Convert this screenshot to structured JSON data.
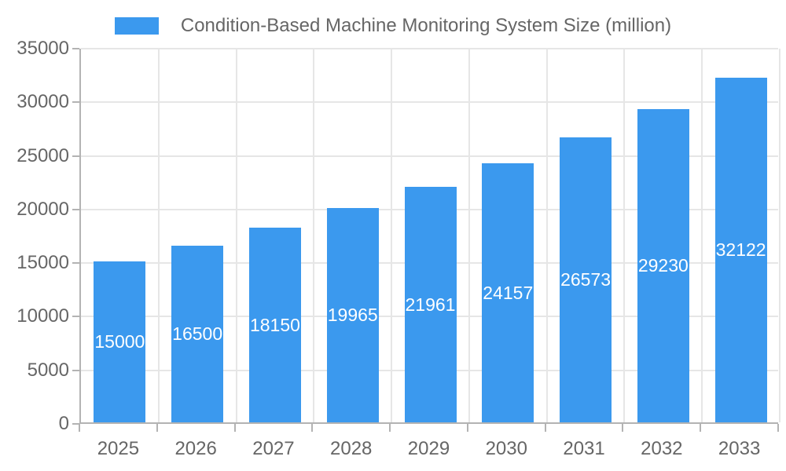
{
  "chart_data": {
    "type": "bar",
    "title": "Condition-Based Machine Monitoring System Size (million)",
    "categories": [
      "2025",
      "2026",
      "2027",
      "2028",
      "2029",
      "2030",
      "2031",
      "2032",
      "2033"
    ],
    "values": [
      15000,
      16500,
      18150,
      19965,
      21961,
      24157,
      26573,
      29230,
      32122
    ],
    "series_name": "Condition-Based Machine Monitoring System Size (million)",
    "xlabel": "",
    "ylabel": "",
    "ylim": [
      0,
      35000
    ],
    "ytick_step": 5000,
    "ytick_labels": [
      "0",
      "5000",
      "10000",
      "15000",
      "20000",
      "25000",
      "30000",
      "35000"
    ],
    "grid": true,
    "legend_position": "top",
    "value_labels_position": "center-inside",
    "colors": {
      "bar": "#3B99EE",
      "gridline": "#E6E6E6",
      "axis_line": "#B3B3B3",
      "axis_text": "#666666",
      "value_label_text": "#FFFFFF",
      "background": "#FFFFFF"
    }
  }
}
